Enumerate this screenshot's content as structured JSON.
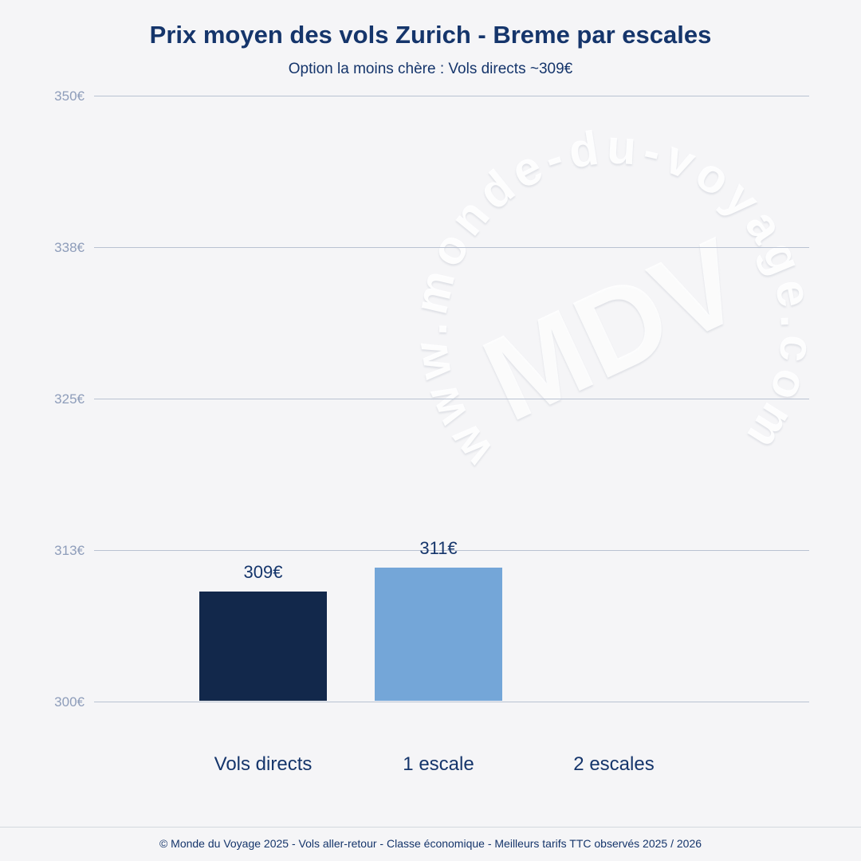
{
  "header": {
    "title": "Prix moyen des vols Zurich - Breme par escales",
    "subtitle": "Option la moins chère : Vols directs ~309€"
  },
  "chart_data": {
    "type": "bar",
    "title": "Prix moyen des vols Zurich - Breme par escales",
    "subtitle": "Option la moins chère : Vols directs ~309€",
    "categories": [
      "Vols directs",
      "1 escale",
      "2 escales"
    ],
    "values": [
      309,
      311,
      null
    ],
    "value_labels": [
      "309€",
      "311€",
      ""
    ],
    "ylim": [
      300,
      350
    ],
    "yticks": [
      350,
      337.5,
      325,
      312.5,
      300
    ],
    "ytick_labels": [
      "350€",
      "338€",
      "325€",
      "313€",
      "300€"
    ],
    "grid": true,
    "legend": false,
    "bar_colors": [
      "#12284b",
      "#74a6d8",
      "#74a6d8"
    ]
  },
  "watermark": {
    "circle_text": "www.monde-du-voyage.com",
    "monogram": "MDV"
  },
  "footer": {
    "text": "© Monde du Voyage 2025 - Vols aller-retour - Classe économique - Meilleurs tarifs TTC observés 2025 / 2026"
  },
  "colors": {
    "background": "#f5f5f7",
    "title": "#15356b",
    "axis_label": "#8e9dba",
    "gridline": "#b9c2d2",
    "bar_direct": "#12284b",
    "bar_one_stop": "#74a6d8"
  }
}
